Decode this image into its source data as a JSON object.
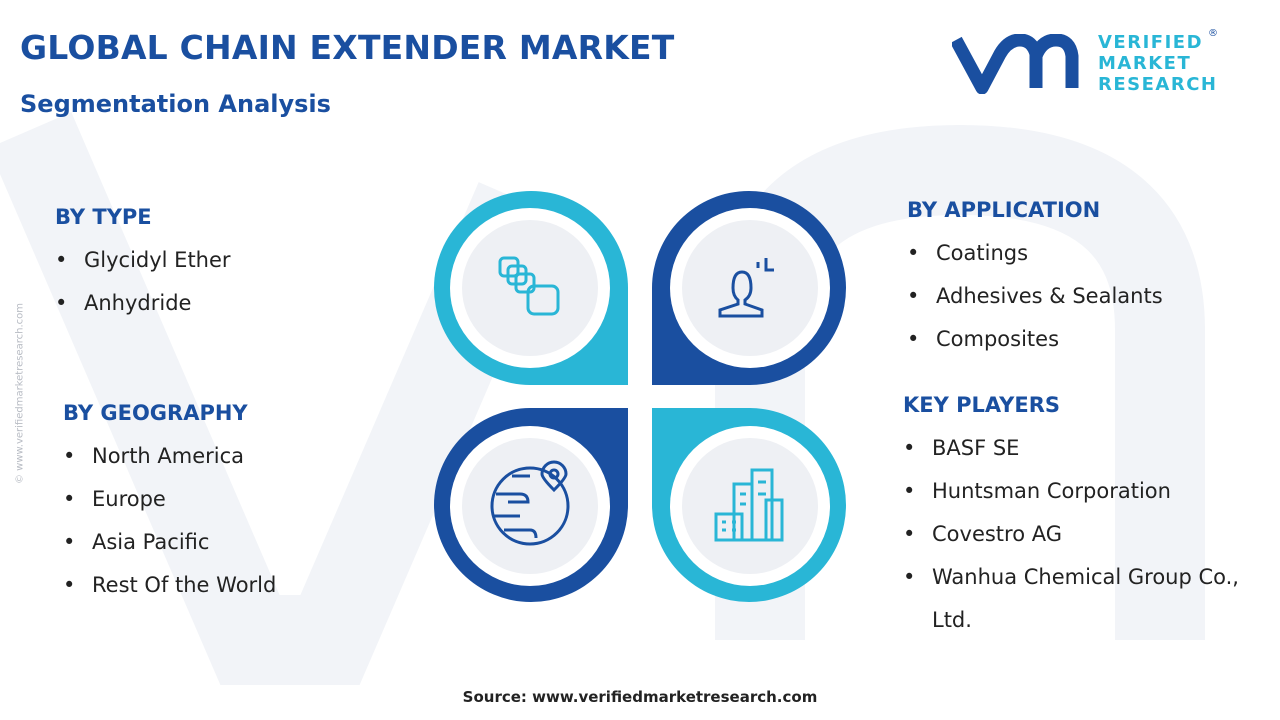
{
  "header": {
    "title": "GLOBAL CHAIN EXTENDER MARKET",
    "subtitle": "Segmentation Analysis"
  },
  "logo": {
    "line1": "VERIFIED",
    "line2": "MARKET",
    "line3": "RESEARCH",
    "mark": "®"
  },
  "sections": [
    {
      "heading": "BY TYPE",
      "items": [
        "Glycidyl Ether",
        "Anhydride"
      ]
    },
    {
      "heading": "BY GEOGRAPHY",
      "items": [
        "North America",
        "Europe",
        "Asia Pacific",
        "Rest Of the World"
      ]
    },
    {
      "heading": "BY APPLICATION",
      "items": [
        "Coatings",
        "Adhesives & Sealants",
        "Composites"
      ]
    },
    {
      "heading": "KEY PLAYERS",
      "items": [
        "BASF SE",
        "Huntsman Corporation",
        "Covestro AG",
        "Wanhua Chemical Group Co., Ltd."
      ]
    }
  ],
  "source": "Source: www.verifiedmarketresearch.com",
  "watermark": "© www.verifiedmarketresearch.com"
}
